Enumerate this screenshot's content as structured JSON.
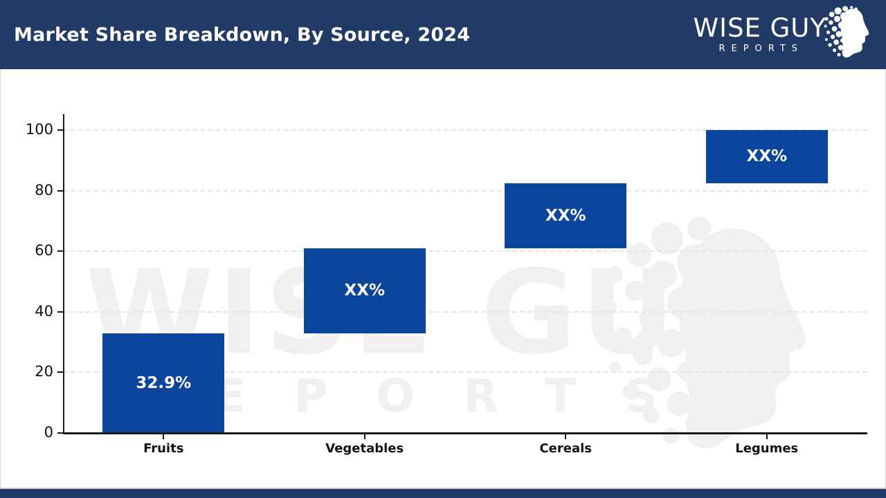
{
  "header": {
    "title": "Market Share Breakdown, By Source, 2024",
    "bg_color": "#213A66",
    "logo": {
      "line1": "WISE GUY",
      "line2": "REPORTS"
    }
  },
  "watermark": {
    "line1": "WISE GUY",
    "line2": "REPORTS"
  },
  "chart_data": {
    "type": "bar",
    "subtype": "floating-waterfall",
    "title": "",
    "xlabel": "",
    "ylabel": "",
    "categories": [
      "Fruits",
      "Vegetables",
      "Cereals",
      "Legumes"
    ],
    "segments": [
      {
        "category": "Fruits",
        "start": 0,
        "end": 32.9,
        "label": "32.9%"
      },
      {
        "category": "Vegetables",
        "start": 32.9,
        "end": 61,
        "label": "XX%"
      },
      {
        "category": "Cereals",
        "start": 61,
        "end": 82.5,
        "label": "XX%"
      },
      {
        "category": "Legumes",
        "start": 82.5,
        "end": 100,
        "label": "XX%"
      }
    ],
    "yticks": [
      0,
      20,
      40,
      60,
      80,
      100
    ],
    "ylim": [
      0,
      105
    ],
    "bar_color": "#0B459C",
    "grid": "horizontal-dashed",
    "legend": "none"
  }
}
